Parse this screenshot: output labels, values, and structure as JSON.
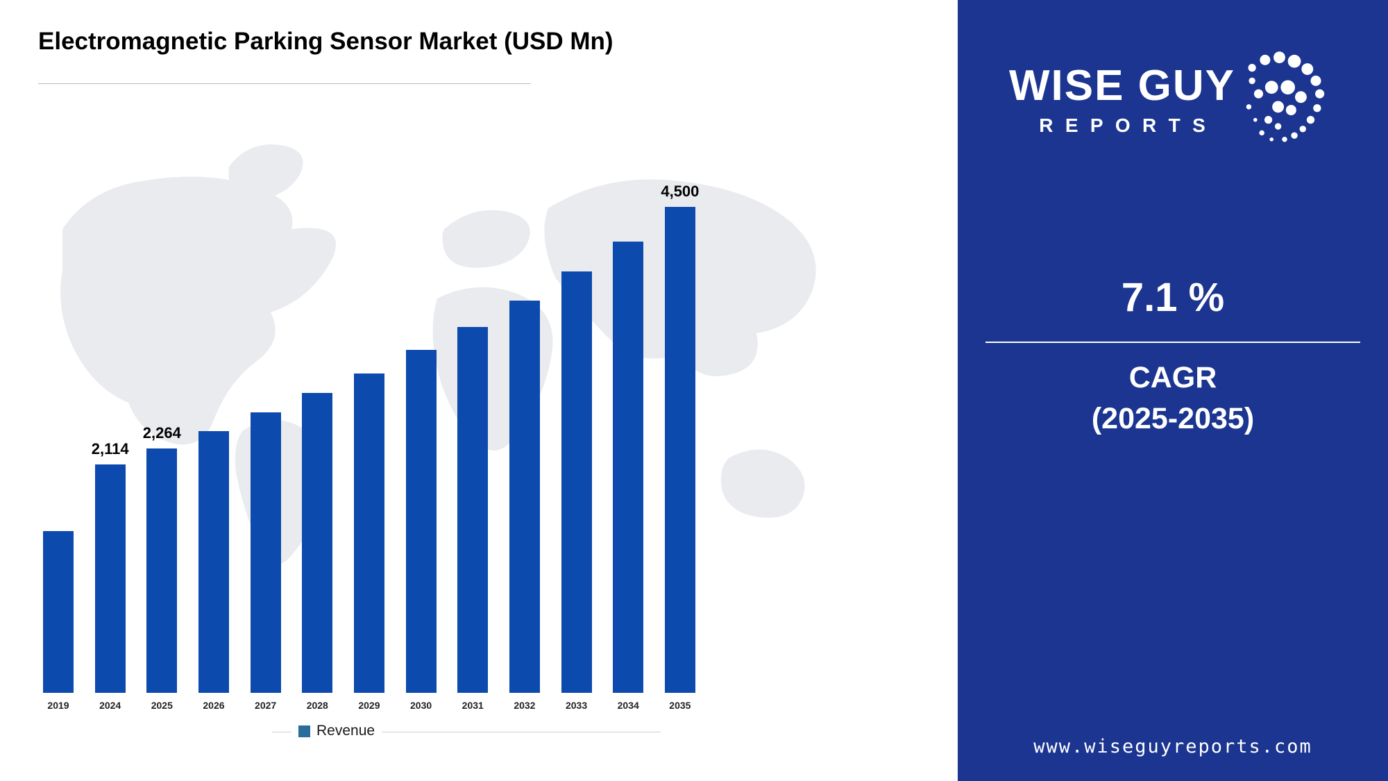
{
  "title": "Electromagnetic Parking Sensor Market (USD Mn)",
  "chart_data": {
    "type": "bar",
    "title": "Electromagnetic Parking Sensor Market (USD Mn)",
    "categories": [
      "2019",
      "2024",
      "2025",
      "2026",
      "2027",
      "2028",
      "2029",
      "2030",
      "2031",
      "2032",
      "2033",
      "2034",
      "2035"
    ],
    "values": [
      1500,
      2114,
      2264,
      2425,
      2600,
      2780,
      2960,
      3175,
      3390,
      3635,
      3900,
      4180,
      4500
    ],
    "data_labels": [
      "",
      "2,114",
      "2,264",
      "",
      "",
      "",
      "",
      "",
      "",
      "",
      "",
      "",
      "4,500"
    ],
    "xlabel": "",
    "ylabel": "",
    "ylim": [
      0,
      4500
    ],
    "grid": false,
    "legend": [
      "Revenue"
    ],
    "legend_position": "bottom",
    "bar_color": "#0d4aad",
    "legend_swatch_color": "#2a6d9b"
  },
  "side_panel": {
    "logo_line1": "WISE GUY",
    "logo_line2": "REPORTS",
    "cagr_value": "7.1 %",
    "cagr_label": "CAGR",
    "cagr_range": "(2025-2035)",
    "website": "www.wiseguyreports.com",
    "bg_color": "#1b3590"
  }
}
